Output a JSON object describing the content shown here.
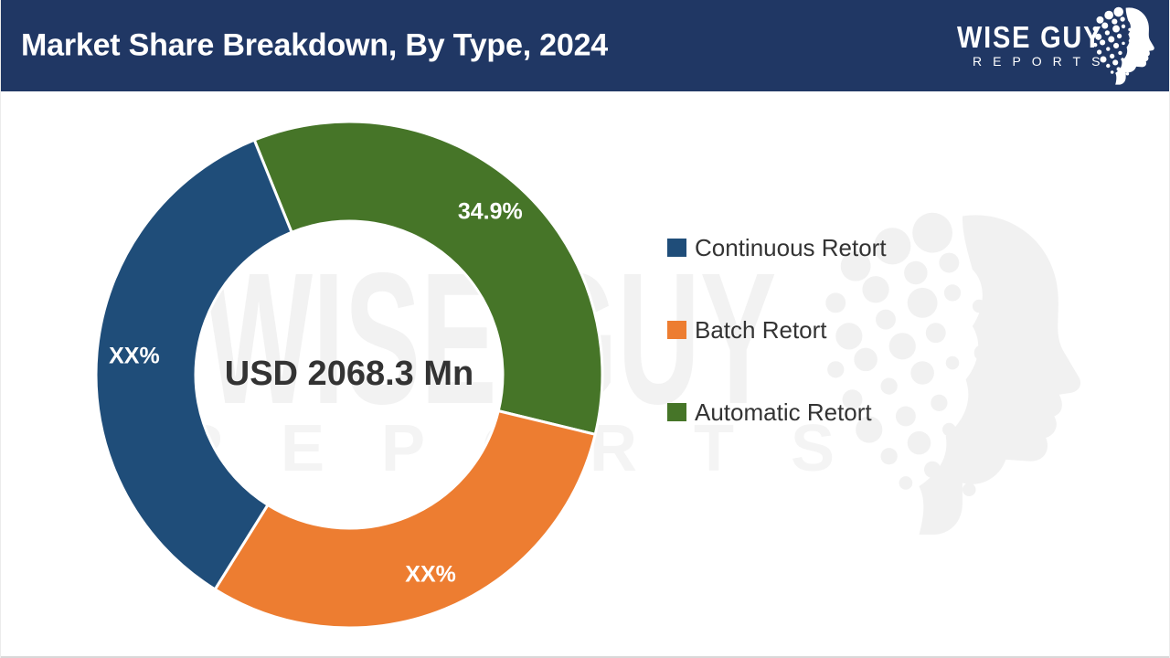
{
  "header": {
    "title": "Market Share Breakdown, By Type, 2024",
    "logo": {
      "brand_line1": "WISE GUY",
      "brand_line2": "REPORTS"
    }
  },
  "watermark": {
    "line1": "WISE GUY",
    "line2": "REPORTS"
  },
  "chart_data": {
    "type": "pie",
    "subtype": "donut",
    "title": "Market Share Breakdown, By Type, 2024",
    "center_label": "USD 2068.3 Mn",
    "segments": [
      {
        "label": "Continuous Retort",
        "display_value": "XX%",
        "value_pct": 35.0,
        "color": "#1F4D79"
      },
      {
        "label": "Batch Retort",
        "display_value": "XX%",
        "value_pct": 30.1,
        "color": "#ED7D31"
      },
      {
        "label": "Automatic Retort",
        "display_value": "34.9%",
        "value_pct": 34.9,
        "color": "#467528"
      }
    ],
    "legend_position": "right",
    "start_angle_deg": -22,
    "draw_direction": "clockwise",
    "draw_order": "reversed-legend-order",
    "slice_separator_color": "#FFFFFF"
  },
  "colors": {
    "header_bg": "#203764",
    "center_label_text": "#333333",
    "legend_text": "#333333",
    "slice_label_text": "#FFFFFF",
    "watermark": "#F2F2F2",
    "footer_rule": "#D8D8D8"
  }
}
